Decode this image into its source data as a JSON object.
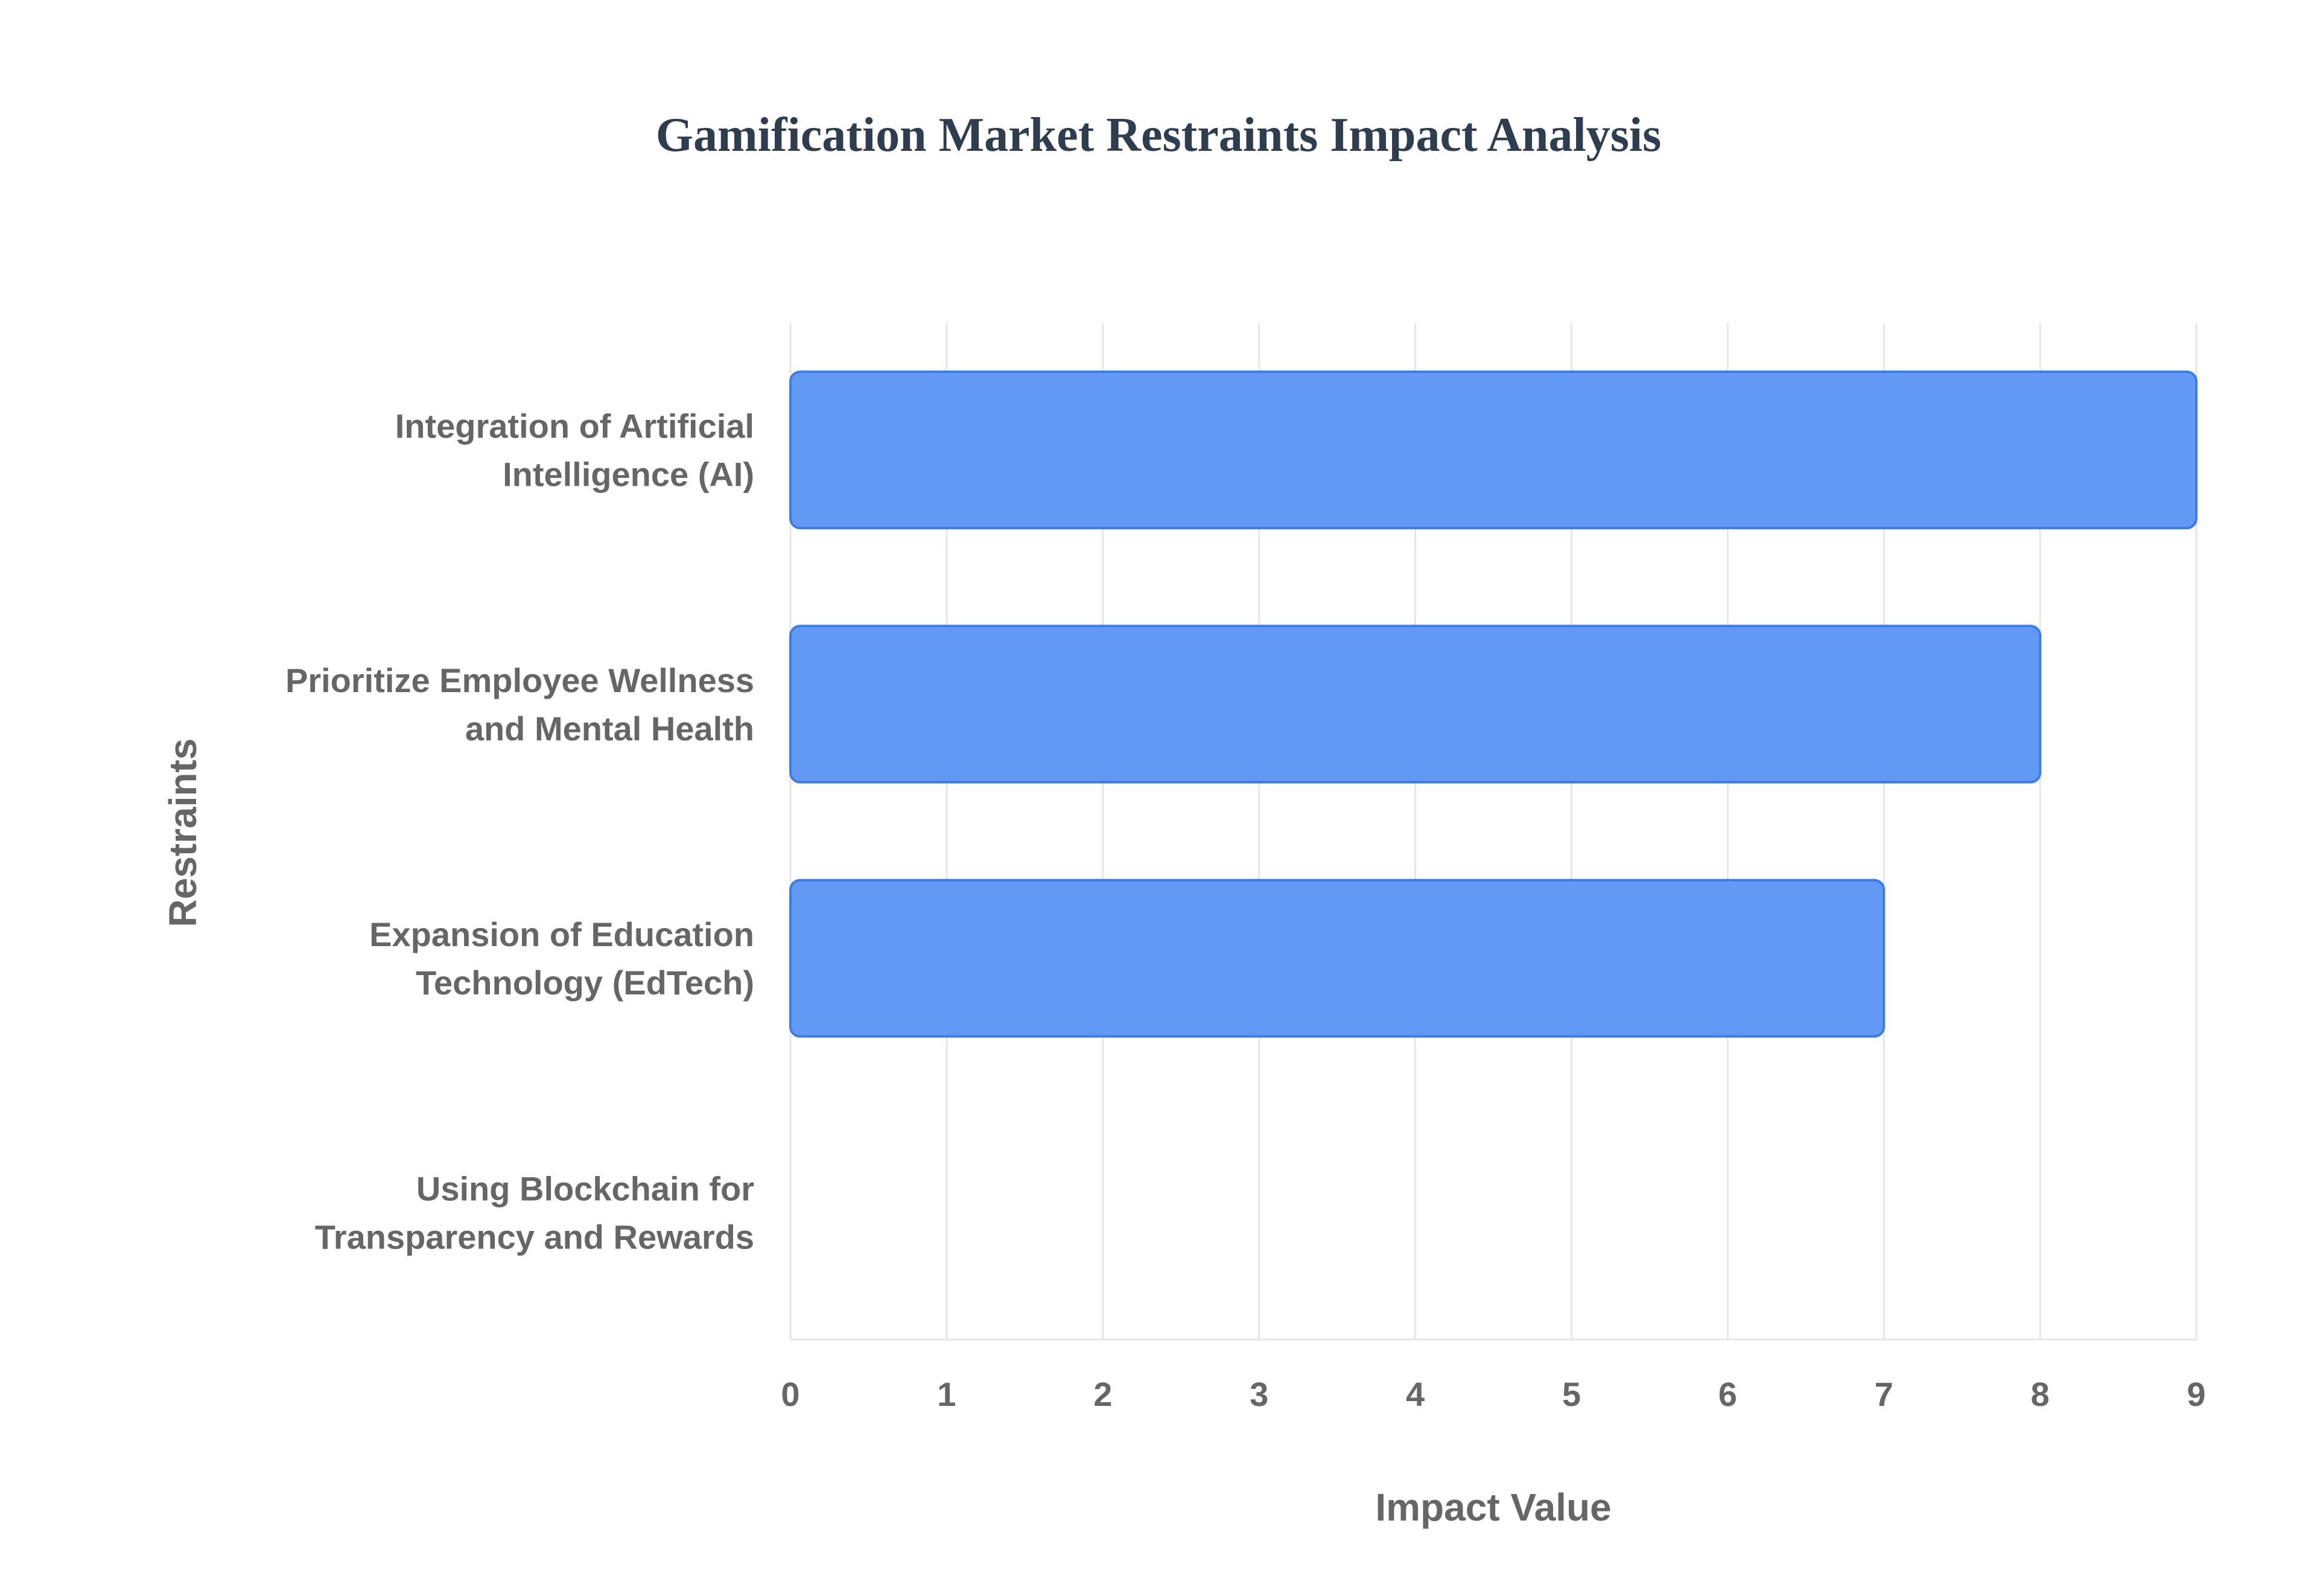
{
  "chart_data": {
    "type": "bar",
    "orientation": "horizontal",
    "title": "Gamification Market Restraints Impact Analysis",
    "xlabel": "Impact Value",
    "ylabel": "Restraints",
    "categories": [
      [
        "Integration of Artificial",
        "Intelligence (AI)"
      ],
      [
        "Prioritize Employee Wellness",
        "and Mental Health"
      ],
      [
        "Expansion of Education",
        "Technology (EdTech)"
      ],
      [
        "Using Blockchain for",
        "Transparency and Rewards"
      ]
    ],
    "values": [
      9,
      8,
      7,
      null
    ],
    "xlim": [
      0,
      9
    ],
    "xticks": [
      "0",
      "1",
      "2",
      "3",
      "4",
      "5",
      "6",
      "7",
      "8",
      "9"
    ],
    "grid": true,
    "legend": "none",
    "colors": {
      "bar_fill": "#6199f5",
      "bar_stroke": "#3b7de8",
      "title": "#2c3e50",
      "text": "#666666",
      "grid": "#e6e6e6"
    }
  }
}
